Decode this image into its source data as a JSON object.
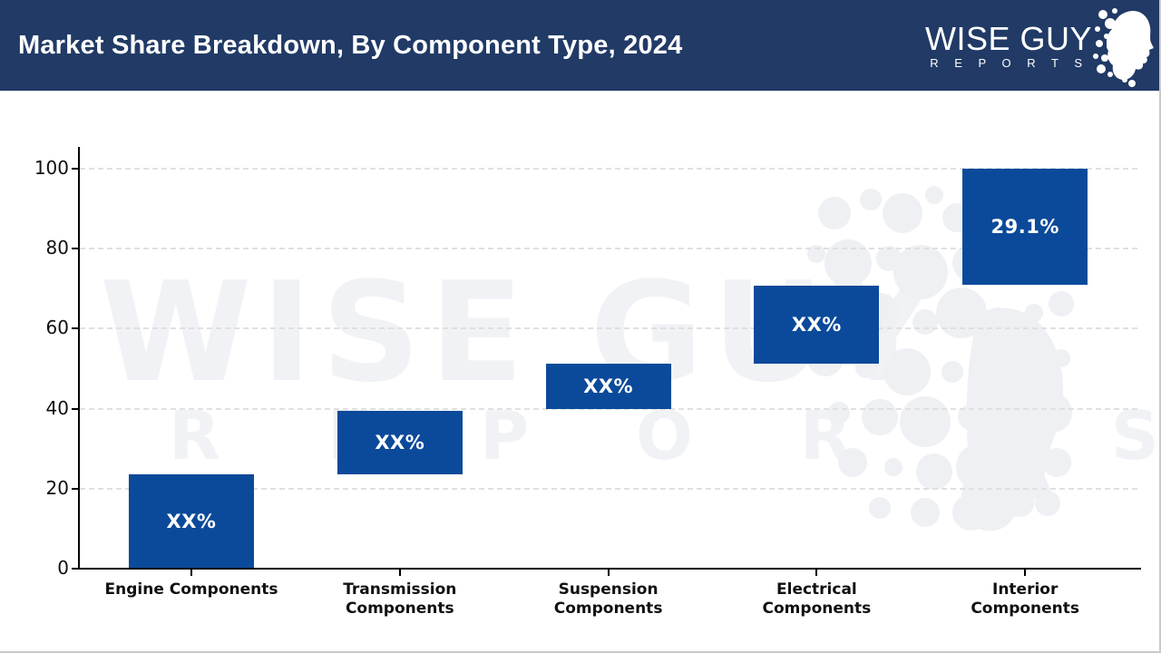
{
  "header": {
    "title": "Market Share Breakdown, By Component Type, 2024",
    "logo": {
      "name": "WISE GUY",
      "tagline": "R E P O R T S"
    }
  },
  "watermark": {
    "line1": "WISE GUY",
    "line2": "R E P O R T S"
  },
  "chart_data": {
    "type": "bar",
    "subtype": "waterfall-style stacked segments, one per category",
    "title": "Market Share Breakdown, By Component Type, 2024",
    "xlabel": "",
    "ylabel": "",
    "ylim": [
      0,
      105
    ],
    "yticks": [
      0,
      20,
      40,
      60,
      80,
      100
    ],
    "grid": "horizontal dashed gridlines at each ytick",
    "legend": "none",
    "bar_color": "#0b4a9a",
    "value_label_color": "#ffffff",
    "categories": [
      "Engine Components",
      "Transmission Components",
      "Suspension Components",
      "Electrical Components",
      "Interior Components"
    ],
    "series": [
      {
        "name": "Market Share (%)",
        "segments": [
          {
            "category": "Engine Components",
            "start": 0,
            "end": 23.5,
            "approx_value": 23.5,
            "value_label": "XX%"
          },
          {
            "category": "Transmission Components",
            "start": 23.5,
            "end": 39.5,
            "approx_value": 16.0,
            "value_label": "XX%"
          },
          {
            "category": "Suspension Components",
            "start": 40.0,
            "end": 51.2,
            "approx_value": 11.2,
            "value_label": "XX%"
          },
          {
            "category": "Electrical Components",
            "start": 51.2,
            "end": 70.7,
            "approx_value": 19.5,
            "value_label": "XX%"
          },
          {
            "category": "Interior Components",
            "start": 70.9,
            "end": 100,
            "approx_value": 29.1,
            "value_label": "29.1%"
          }
        ]
      }
    ],
    "x_label_lines": [
      [
        "Engine Components"
      ],
      [
        "Transmission",
        "Components"
      ],
      [
        "Suspension",
        "Components"
      ],
      [
        "Electrical",
        "Components"
      ],
      [
        "Interior",
        "Components"
      ]
    ]
  },
  "colors": {
    "header_bg": "#213a66",
    "bar": "#0b4a9a",
    "watermark": "#f1f2f5",
    "gridline": "#e0e0e0",
    "axis": "#000000",
    "page_border": "#c9c9c9"
  }
}
